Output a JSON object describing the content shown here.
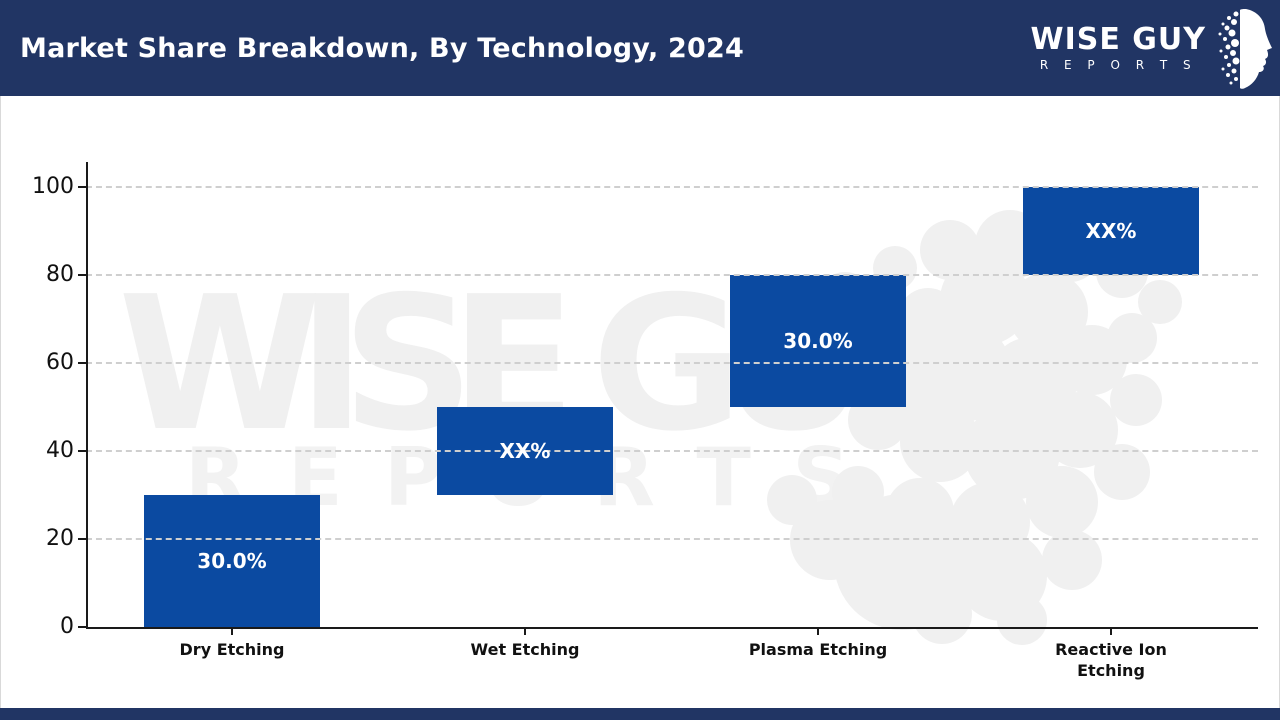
{
  "header": {
    "title": "Market Share Breakdown, By Technology, 2024",
    "logo": {
      "line1": "WISE GUY",
      "line2": "R E P O R T S"
    }
  },
  "watermark": {
    "line1": "WISE GUY",
    "line2": "R E P O R T S"
  },
  "colors": {
    "header_bg": "#213564",
    "footer_bg": "#213564",
    "bar": "#0B4AA1",
    "grid": "#CFCFCF",
    "axis": "#1A1A1A",
    "bar_label_text": "#FFFFFF",
    "watermark_gray": "#F0F0F0"
  },
  "chart_data": {
    "type": "bar",
    "subtype": "waterfall",
    "title": "Market Share Breakdown, By Technology, 2024",
    "categories": [
      "Dry Etching",
      "Wet Etching",
      "Plasma Etching",
      "Reactive Ion\nEtching"
    ],
    "segments": [
      {
        "category": "Dry Etching",
        "start": 0,
        "end": 30,
        "label": "30.0%"
      },
      {
        "category": "Wet Etching",
        "start": 30,
        "end": 50,
        "label": "XX%"
      },
      {
        "category": "Plasma Etching",
        "start": 50,
        "end": 80,
        "label": "30.0%"
      },
      {
        "category": "Reactive Ion Etching",
        "start": 80,
        "end": 100,
        "label": "XX%"
      }
    ],
    "yticks": [
      0,
      20,
      40,
      60,
      80,
      100
    ],
    "ylim": [
      0,
      105
    ],
    "xlabel": "",
    "ylabel": "",
    "grid": "horizontal-dashed",
    "legend": "none"
  }
}
